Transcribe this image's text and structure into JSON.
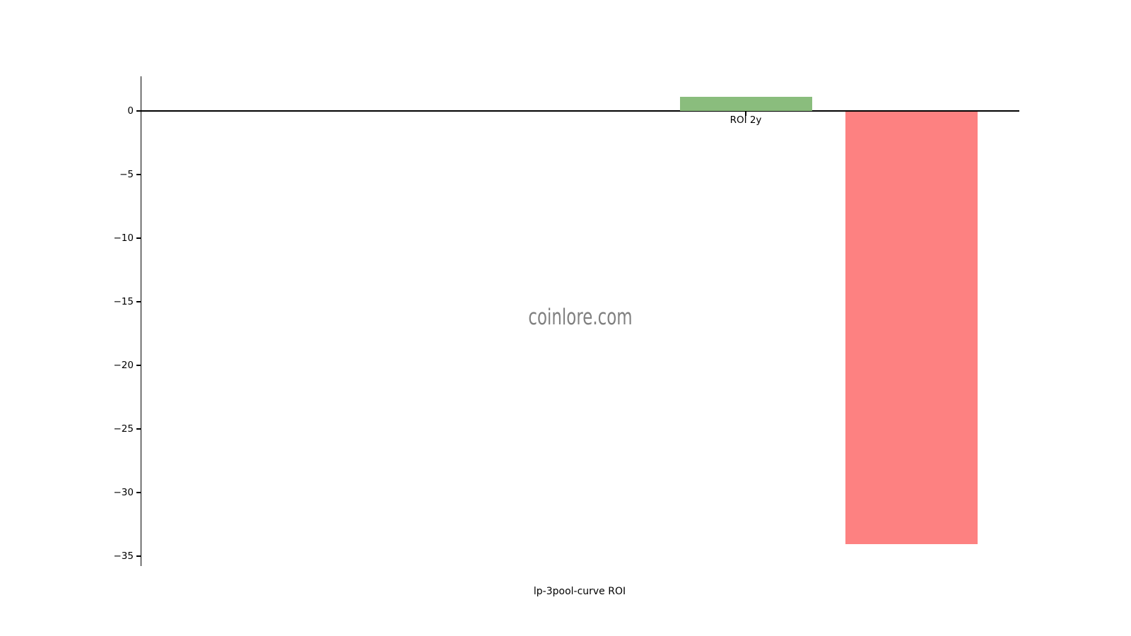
{
  "watermark": "coinlore.com",
  "chart_data": {
    "type": "bar",
    "title": "",
    "xlabel": "lp-3pool-curve ROI",
    "ylabel": "",
    "grid": false,
    "legend": null,
    "ylim": [
      -35.8,
      2.9
    ],
    "y_ticks": [
      0,
      -5,
      -10,
      -15,
      -20,
      -25,
      -30,
      -35
    ],
    "y_tick_labels": [
      "0",
      "−5",
      "−10",
      "−15",
      "−20",
      "−25",
      "−30",
      "−35"
    ],
    "bars": [
      {
        "label": "ROI 2y",
        "value": 1.1,
        "color": "#8abd7d"
      },
      {
        "label": "",
        "value": -34,
        "color": "#fd8181"
      }
    ],
    "colors": {
      "positive_bar": "#8abd7d",
      "negative_bar": "#fd8181",
      "axis": "#000000",
      "watermark_text": "#808080"
    }
  }
}
